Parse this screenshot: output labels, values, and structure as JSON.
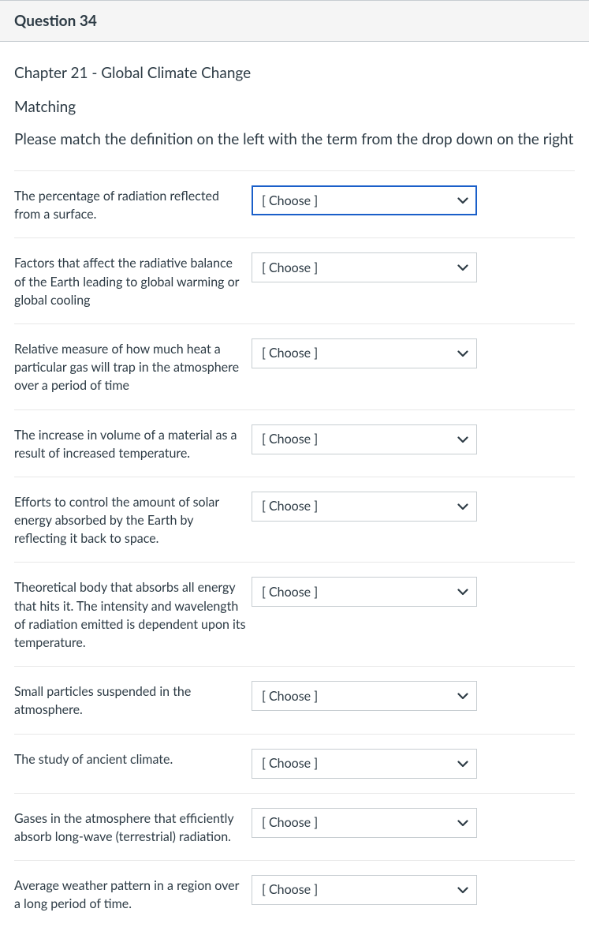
{
  "header": {
    "title": "Question 34"
  },
  "content": {
    "chapter": "Chapter 21 - Global Climate Change",
    "section": "Matching",
    "instructions": "Please match the definition on the left with the term from the drop down on the right"
  },
  "dropdown_placeholder": "[ Choose ]",
  "colors": {
    "text": "#2d3b45",
    "border": "#c7cdd1",
    "row_border": "#e8e8e8",
    "header_bg": "#f5f5f5",
    "focus_border": "#1a5fc9",
    "chevron": "#2d3b45"
  },
  "rows": [
    {
      "definition": "The percentage of radiation reflected from a surface.",
      "selected": "[ Choose ]",
      "focused": true
    },
    {
      "definition": "Factors that affect the radiative balance of the Earth leading to global warming or global cooling",
      "selected": "[ Choose ]",
      "focused": false
    },
    {
      "definition": "Relative measure of how much heat a particular gas will trap in the atmosphere over a period of time",
      "selected": "[ Choose ]",
      "focused": false
    },
    {
      "definition": "The increase in volume of a material as a result of increased temperature.",
      "selected": "[ Choose ]",
      "focused": false
    },
    {
      "definition": "Efforts to control the amount of solar energy absorbed by the Earth by reflecting it back to space.",
      "selected": "[ Choose ]",
      "focused": false
    },
    {
      "definition": "Theoretical body that absorbs all energy that hits it. The intensity and wavelength of radiation emitted is dependent upon its temperature.",
      "selected": "[ Choose ]",
      "focused": false
    },
    {
      "definition": "Small particles suspended in the atmosphere.",
      "selected": "[ Choose ]",
      "focused": false
    },
    {
      "definition": "The study of ancient climate.",
      "selected": "[ Choose ]",
      "focused": false
    },
    {
      "definition": "Gases in the atmosphere that efficiently absorb long-wave (terrestrial) radiation.",
      "selected": "[ Choose ]",
      "focused": false
    },
    {
      "definition": "Average weather pattern in a region over a long period of time.",
      "selected": "[ Choose ]",
      "focused": false
    }
  ]
}
